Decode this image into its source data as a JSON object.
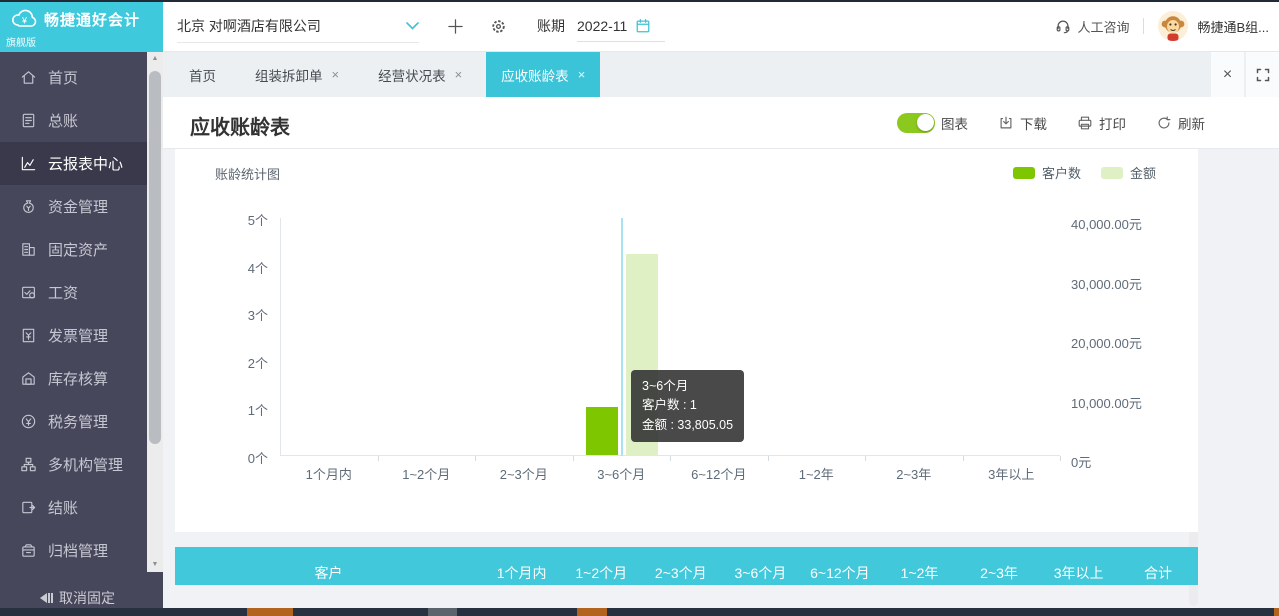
{
  "brand": {
    "name": "畅捷通好会计",
    "edition": "旗舰版"
  },
  "topbar": {
    "company": "北京 对啊酒店有限公司",
    "period_label": "账期",
    "period_value": "2022-11",
    "consult_label": "人工咨询",
    "user_name": "畅捷通B组..."
  },
  "icons": {
    "close": "×",
    "up_arrow": "▲",
    "down_arrow": "▼",
    "plus": "+"
  },
  "tabs": {
    "items": [
      {
        "key": "home",
        "label": "首页",
        "closable": false,
        "active": false
      },
      {
        "key": "assembly-order",
        "label": "组装拆卸单",
        "closable": true,
        "active": false
      },
      {
        "key": "operating-report",
        "label": "经营状况表",
        "closable": true,
        "active": false
      },
      {
        "key": "receivable-aging",
        "label": "应收账龄表",
        "closable": true,
        "active": true
      }
    ]
  },
  "sidebar": {
    "items": [
      {
        "key": "home",
        "icon": "home-icon",
        "label": "首页",
        "active": false
      },
      {
        "key": "general-ledger",
        "icon": "ledger-icon",
        "label": "总账",
        "active": false
      },
      {
        "key": "cloud-reports",
        "icon": "cloud-report-icon",
        "label": "云报表中心",
        "active": true
      },
      {
        "key": "funds",
        "icon": "funds-icon",
        "label": "资金管理",
        "active": false
      },
      {
        "key": "fixed-assets",
        "icon": "fixed-assets-icon",
        "label": "固定资产",
        "active": false
      },
      {
        "key": "salary",
        "icon": "salary-icon",
        "label": "工资",
        "active": false
      },
      {
        "key": "invoice",
        "icon": "invoice-icon",
        "label": "发票管理",
        "active": false
      },
      {
        "key": "inventory",
        "icon": "inventory-icon",
        "label": "库存核算",
        "active": false
      },
      {
        "key": "tax",
        "icon": "tax-icon",
        "label": "税务管理",
        "active": false
      },
      {
        "key": "multi-org",
        "icon": "multi-org-icon",
        "label": "多机构管理",
        "active": false
      },
      {
        "key": "closing",
        "icon": "closing-icon",
        "label": "结账",
        "active": false
      },
      {
        "key": "archive",
        "icon": "archive-icon",
        "label": "归档管理",
        "active": false
      }
    ],
    "unpin_label": "取消固定"
  },
  "toolbar": {
    "title": "应收账龄表",
    "chart_toggle_label": "图表",
    "toggle_on": true,
    "download_label": "下载",
    "print_label": "打印",
    "refresh_label": "刷新"
  },
  "chart_data": {
    "type": "bar",
    "title": "账龄统计图",
    "categories": [
      "1个月内",
      "1~2个月",
      "2~3个月",
      "3~6个月",
      "6~12个月",
      "1~2年",
      "2~3年",
      "3年以上"
    ],
    "series": [
      {
        "name": "客户数",
        "axis": "left",
        "color": "#7ec600",
        "values": [
          0,
          0,
          0,
          1,
          0,
          0,
          0,
          0
        ]
      },
      {
        "name": "金额",
        "axis": "right",
        "color": "#dff0c5",
        "values": [
          0,
          0,
          0,
          33805.05,
          0,
          0,
          0,
          0
        ]
      }
    ],
    "left_axis": {
      "ticks": [
        "5个",
        "4个",
        "3个",
        "2个",
        "1个",
        "0个"
      ],
      "max": 5,
      "min": 0
    },
    "right_axis": {
      "ticks": [
        "40,000.00元",
        "30,000.00元",
        "20,000.00元",
        "10,000.00元",
        "0元"
      ],
      "max": 40000,
      "min": 0
    },
    "grid": false,
    "legend_position": "top-right",
    "highlight_index": 3,
    "tooltip": {
      "category": "3~6个月",
      "rows": [
        {
          "label": "客户数",
          "value": "1"
        },
        {
          "label": "金额",
          "value": "33,805.05"
        }
      ]
    }
  },
  "table": {
    "columns": [
      "客户",
      "1个月内",
      "1~2个月",
      "2~3个月",
      "3~6个月",
      "6~12个月",
      "1~2年",
      "2~3年",
      "3年以上",
      "合计"
    ]
  },
  "colors": {
    "brand_cyan": "#3fc9dd",
    "tab_active_cyan": "#3bc3d8",
    "table_header_cyan": "#41c8da",
    "toggle_green": "#8bc91e",
    "bar_green": "#7ec600",
    "bar_light_green": "#dff0c5",
    "pointer_cyan": "#a9e3f1",
    "sidebar_bg": "#47475b",
    "taskbar_bg": "#273140"
  },
  "taskbar": {
    "segments": [
      {
        "x": 247,
        "w": 46,
        "color": "#b2641f"
      },
      {
        "x": 428,
        "w": 29,
        "color": "#5b646d"
      },
      {
        "x": 577,
        "w": 30,
        "color": "#b2641f"
      },
      {
        "x": 1274,
        "w": 5,
        "color": "#b2641f"
      }
    ]
  }
}
